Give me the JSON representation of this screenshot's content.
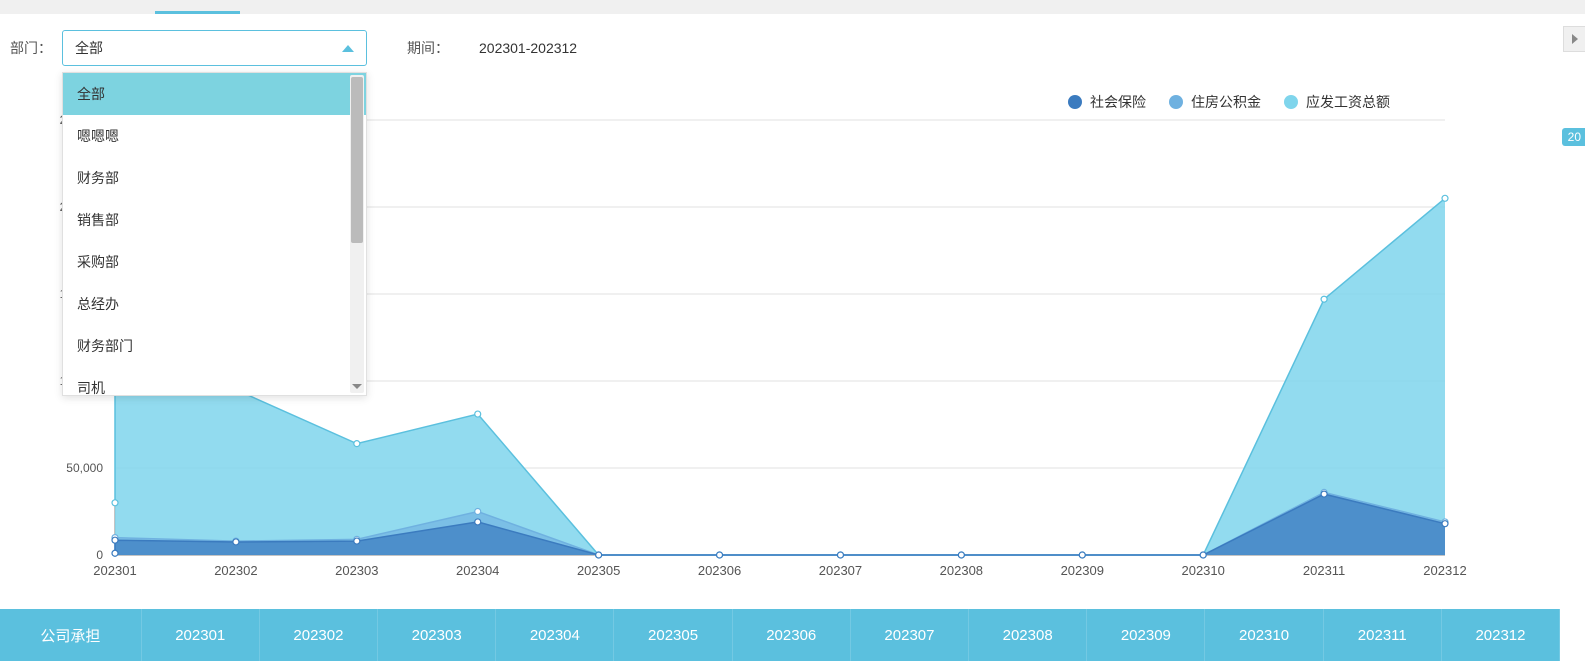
{
  "filters": {
    "department_label": "部门：",
    "department_selected": "全部",
    "period_label": "期间：",
    "period_value": "202301-202312",
    "dropdown_options": [
      "全部",
      "嗯嗯嗯",
      "财务部",
      "销售部",
      "采购部",
      "总经办",
      "财务部门",
      "司机"
    ]
  },
  "side_tag": "20",
  "chart": {
    "type": "area",
    "categories": [
      "202301",
      "202302",
      "202303",
      "202304",
      "202305",
      "202306",
      "202307",
      "202308",
      "202309",
      "202310",
      "202311",
      "202312"
    ],
    "ylim": [
      0,
      250000
    ],
    "ytick_step": 50000,
    "ytick_labels": [
      "0",
      "50,000",
      "100,000",
      "150,000",
      "200,000",
      "250,000"
    ],
    "grid_color": "#e0e0e0",
    "axis_color": "#888",
    "label_color": "#555",
    "label_fontsize": 12,
    "background_color": "#ffffff",
    "legend": [
      {
        "label": "社会保险",
        "color": "#3b7bbf"
      },
      {
        "label": "住房公积金",
        "color": "#6fb1e0"
      },
      {
        "label": "应发工资总额",
        "color": "#7fd5ec"
      }
    ],
    "series": [
      {
        "name": "应发工资总额",
        "fill": "#7fd5ec",
        "fill_opacity": 0.85,
        "stroke": "#5bc0de",
        "marker_stroke": "#5bc0de",
        "marker_fill": "#ffffff",
        "values": [
          30000,
          100000,
          95000,
          64000,
          81000,
          0,
          0,
          0,
          0,
          0,
          0,
          147000,
          205000
        ]
      },
      {
        "name": "住房公积金",
        "fill": "#6fb1e0",
        "fill_opacity": 0.65,
        "stroke": "#6fb1e0",
        "marker_stroke": "#6fb1e0",
        "marker_fill": "#ffffff",
        "values": [
          1000,
          10000,
          8000,
          9000,
          25000,
          0,
          0,
          0,
          0,
          0,
          0,
          36000,
          19000
        ]
      },
      {
        "name": "社会保险",
        "fill": "#3b7bbf",
        "fill_opacity": 0.7,
        "stroke": "#3b7bbf",
        "marker_stroke": "#3b7bbf",
        "marker_fill": "#ffffff",
        "values": [
          1000,
          8500,
          7500,
          8000,
          19000,
          0,
          0,
          0,
          0,
          0,
          0,
          35000,
          18000
        ]
      }
    ],
    "marker_radius": 3,
    "note_first_point_x_offset": true
  },
  "summary": {
    "row_label": "公司承担",
    "columns": [
      "202301",
      "202302",
      "202303",
      "202304",
      "202305",
      "202306",
      "202307",
      "202308",
      "202309",
      "202310",
      "202311",
      "202312"
    ],
    "header_bg": "#5bc0de",
    "header_text_color": "#ffffff"
  }
}
